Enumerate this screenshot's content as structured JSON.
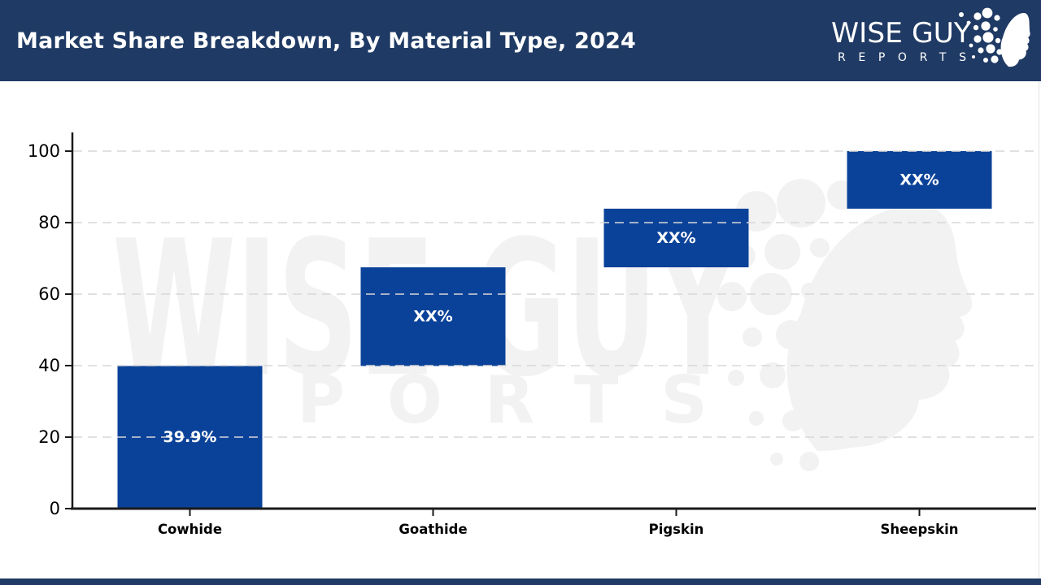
{
  "header": {
    "title": "Market Share Breakdown, By Material Type, 2024",
    "bg_color": "#1f3a64",
    "logo": {
      "line1": "WISE GUY",
      "line2": "REPORTS"
    }
  },
  "watermark": {
    "line1": "WISE GUY",
    "line2": "REPORTS"
  },
  "chart_data": {
    "type": "bar",
    "subtype": "waterfall",
    "title": "Market Share Breakdown, By Material Type, 2024",
    "categories": [
      "Cowhide",
      "Goathide",
      "Pigskin",
      "Sheepskin"
    ],
    "segments": [
      {
        "category": "Cowhide",
        "start": 0,
        "end": 39.9,
        "label": "39.9%"
      },
      {
        "category": "Goathide",
        "start": 39.9,
        "end": 67.5,
        "label": "XX%"
      },
      {
        "category": "Pigskin",
        "start": 67.5,
        "end": 83.9,
        "label": "XX%"
      },
      {
        "category": "Sheepskin",
        "start": 83.9,
        "end": 100,
        "label": "XX%"
      }
    ],
    "bar_color": "#0b4299",
    "label_color": "#ffffff",
    "ylim": [
      0,
      100
    ],
    "yticks": [
      0,
      20,
      40,
      60,
      80,
      100
    ],
    "grid": "horizontal-dashed",
    "grid_color": "#d7d7d7",
    "axis_color": "#1a1a1a",
    "legend": "none",
    "xlabel": "",
    "ylabel": ""
  }
}
